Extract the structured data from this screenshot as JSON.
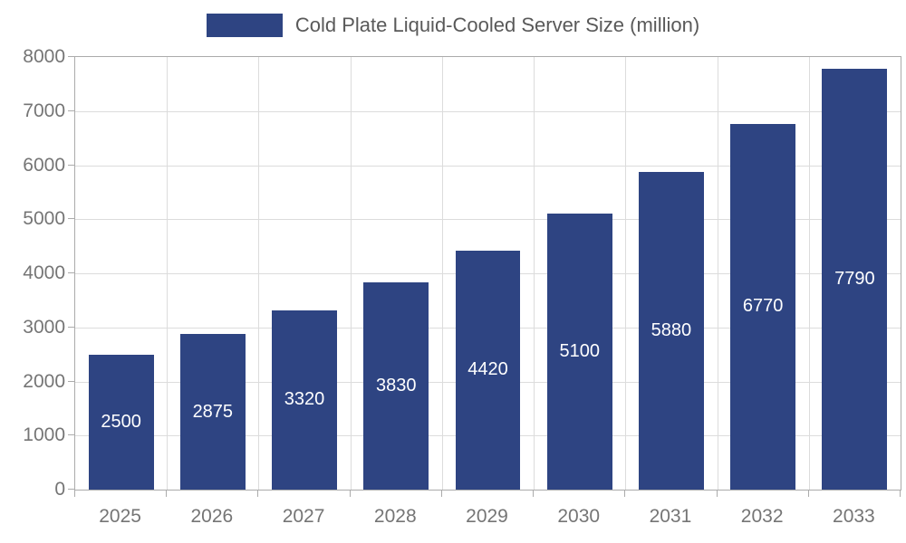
{
  "legend": {
    "label": "Cold Plate Liquid-Cooled Server Size (million)"
  },
  "chart_data": {
    "type": "bar",
    "title": "Cold Plate Liquid-Cooled Server Size (million)",
    "categories": [
      "2025",
      "2026",
      "2027",
      "2028",
      "2029",
      "2030",
      "2031",
      "2032",
      "2033"
    ],
    "values": [
      2500,
      2875,
      3320,
      3830,
      4420,
      5100,
      5880,
      6770,
      7790
    ],
    "xlabel": "",
    "ylabel": "",
    "ylim": [
      0,
      8000
    ],
    "ytick_interval": 1000,
    "grid": true,
    "legend_position": "top",
    "bar_color": "#2e4482",
    "bar_label_color": "#ffffff",
    "axis_label_color": "#757575",
    "title_color": "#595959"
  }
}
